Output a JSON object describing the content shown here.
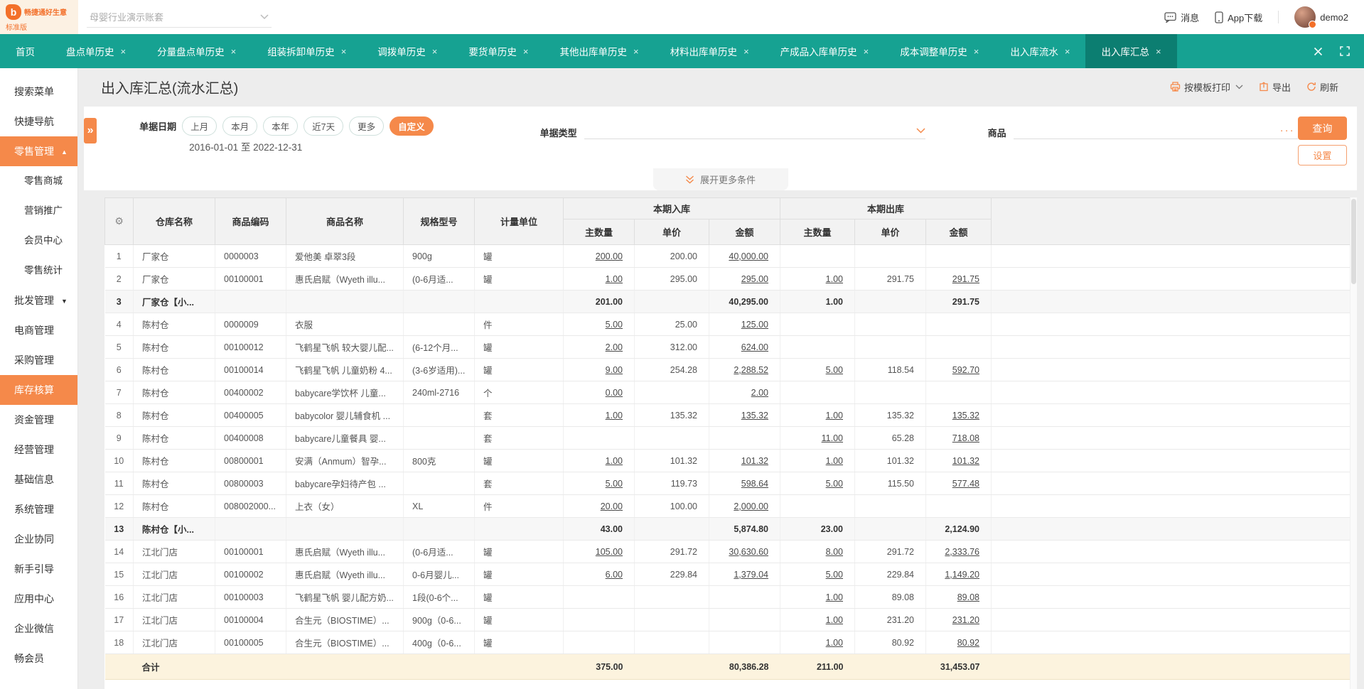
{
  "colors": {
    "accent_orange": "#f5894a",
    "teal": "#16a292",
    "teal_active": "#0c7e71",
    "total_row_bg": "#fcf3de",
    "logo_orange": "#f3702a"
  },
  "icons": {
    "gear": "⚙",
    "expand": "»",
    "close": "×",
    "arrow_up": "▲",
    "arrow_down": "▼",
    "ellipsis": "···"
  },
  "topbar": {
    "logo_title": "畅捷通好生意",
    "logo_edition": "标准版",
    "logo_glyph": "b",
    "account_selector": "母婴行业演示账套",
    "messages_label": "消息",
    "app_download_label": "App下载",
    "username": "demo2"
  },
  "tabbar": {
    "tabs": [
      {
        "label": "首页",
        "closable": false,
        "active": false
      },
      {
        "label": "盘点单历史",
        "closable": true,
        "active": false
      },
      {
        "label": "分量盘点单历史",
        "closable": true,
        "active": false
      },
      {
        "label": "组装拆卸单历史",
        "closable": true,
        "active": false
      },
      {
        "label": "调拨单历史",
        "closable": true,
        "active": false
      },
      {
        "label": "要货单历史",
        "closable": true,
        "active": false
      },
      {
        "label": "其他出库单历史",
        "closable": true,
        "active": false
      },
      {
        "label": "材料出库单历史",
        "closable": true,
        "active": false
      },
      {
        "label": "产成品入库单历史",
        "closable": true,
        "active": false
      },
      {
        "label": "成本调整单历史",
        "closable": true,
        "active": false
      },
      {
        "label": "出入库流水",
        "closable": true,
        "active": false
      },
      {
        "label": "出入库汇总",
        "closable": true,
        "active": true
      }
    ]
  },
  "sidebar": {
    "items": [
      {
        "label": "搜索菜单",
        "style": "normal"
      },
      {
        "label": "快捷导航",
        "style": "normal"
      },
      {
        "label": "零售管理",
        "style": "parent-active",
        "arrow": "up"
      },
      {
        "label": "零售商城",
        "style": "sub"
      },
      {
        "label": "营销推广",
        "style": "sub"
      },
      {
        "label": "会员中心",
        "style": "sub"
      },
      {
        "label": "零售统计",
        "style": "sub"
      },
      {
        "label": "批发管理",
        "style": "normal",
        "arrow": "down"
      },
      {
        "label": "电商管理",
        "style": "normal"
      },
      {
        "label": "采购管理",
        "style": "normal"
      },
      {
        "label": "库存核算",
        "style": "active"
      },
      {
        "label": "资金管理",
        "style": "normal"
      },
      {
        "label": "经营管理",
        "style": "normal"
      },
      {
        "label": "基础信息",
        "style": "normal"
      },
      {
        "label": "系统管理",
        "style": "normal"
      },
      {
        "label": "企业协同",
        "style": "normal"
      },
      {
        "label": "新手引导",
        "style": "normal"
      },
      {
        "label": "应用中心",
        "style": "normal"
      },
      {
        "label": "企业微信",
        "style": "normal"
      },
      {
        "label": "畅会员",
        "style": "normal"
      }
    ]
  },
  "page": {
    "title": "出入库汇总(流水汇总)",
    "actions": {
      "print": "按模板打印",
      "export": "导出",
      "refresh": "刷新"
    }
  },
  "filters": {
    "date_label": "单据日期",
    "date_pills": [
      "上月",
      "本月",
      "本年",
      "近7天",
      "更多"
    ],
    "date_custom_pill": "自定义",
    "date_range": "2016-01-01 至 2022-12-31",
    "doc_type_label": "单据类型",
    "product_label": "商品",
    "search_button": "查询",
    "settings_button": "设置",
    "expand_more": "展开更多条件"
  },
  "table": {
    "columns": {
      "warehouse": "仓库名称",
      "code": "商品编码",
      "name": "商品名称",
      "spec": "规格型号",
      "unit": "计量单位"
    },
    "group_in": "本期入库",
    "group_out": "本期出库",
    "sub_columns": [
      "主数量",
      "单价",
      "金额"
    ],
    "rows": [
      {
        "n": "1",
        "warehouse": "厂家仓",
        "code": "0000003",
        "name": "爱他美 卓翠3段",
        "spec": "900g",
        "unit": "罐",
        "in_qty": "200.00",
        "in_price": "200.00",
        "in_amt": "40,000.00",
        "out_qty": "",
        "out_price": "",
        "out_amt": "",
        "subtotal": false
      },
      {
        "n": "2",
        "warehouse": "厂家仓",
        "code": "00100001",
        "name": "惠氏启赋（Wyeth illu...",
        "spec": "(0-6月适...",
        "unit": "罐",
        "in_qty": "1.00",
        "in_price": "295.00",
        "in_amt": "295.00",
        "out_qty": "1.00",
        "out_price": "291.75",
        "out_amt": "291.75",
        "subtotal": false
      },
      {
        "n": "3",
        "warehouse": "厂家仓【小...",
        "code": "",
        "name": "",
        "spec": "",
        "unit": "",
        "in_qty": "201.00",
        "in_price": "",
        "in_amt": "40,295.00",
        "out_qty": "1.00",
        "out_price": "",
        "out_amt": "291.75",
        "subtotal": true
      },
      {
        "n": "4",
        "warehouse": "陈村仓",
        "code": "0000009",
        "name": "衣服",
        "spec": "",
        "unit": "件",
        "in_qty": "5.00",
        "in_price": "25.00",
        "in_amt": "125.00",
        "out_qty": "",
        "out_price": "",
        "out_amt": "",
        "subtotal": false
      },
      {
        "n": "5",
        "warehouse": "陈村仓",
        "code": "00100012",
        "name": "飞鹤星飞帆 较大婴儿配...",
        "spec": "(6-12个月...",
        "unit": "罐",
        "in_qty": "2.00",
        "in_price": "312.00",
        "in_amt": "624.00",
        "out_qty": "",
        "out_price": "",
        "out_amt": "",
        "subtotal": false
      },
      {
        "n": "6",
        "warehouse": "陈村仓",
        "code": "00100014",
        "name": "飞鹤星飞帆 儿童奶粉 4...",
        "spec": "(3-6岁适用)...",
        "unit": "罐",
        "in_qty": "9.00",
        "in_price": "254.28",
        "in_amt": "2,288.52",
        "out_qty": "5.00",
        "out_price": "118.54",
        "out_amt": "592.70",
        "subtotal": false
      },
      {
        "n": "7",
        "warehouse": "陈村仓",
        "code": "00400002",
        "name": "babycare学饮杯 儿童...",
        "spec": "240ml-2716",
        "unit": "个",
        "in_qty": "0.00",
        "in_price": "",
        "in_amt": "2.00",
        "out_qty": "",
        "out_price": "",
        "out_amt": "",
        "subtotal": false
      },
      {
        "n": "8",
        "warehouse": "陈村仓",
        "code": "00400005",
        "name": "babycolor 婴儿辅食机 ...",
        "spec": "",
        "unit": "套",
        "in_qty": "1.00",
        "in_price": "135.32",
        "in_amt": "135.32",
        "out_qty": "1.00",
        "out_price": "135.32",
        "out_amt": "135.32",
        "subtotal": false
      },
      {
        "n": "9",
        "warehouse": "陈村仓",
        "code": "00400008",
        "name": "babycare儿童餐具 婴...",
        "spec": "",
        "unit": "套",
        "in_qty": "",
        "in_price": "",
        "in_amt": "",
        "out_qty": "11.00",
        "out_price": "65.28",
        "out_amt": "718.08",
        "subtotal": false
      },
      {
        "n": "10",
        "warehouse": "陈村仓",
        "code": "00800001",
        "name": "安满（Anmum）智孕...",
        "spec": "800克",
        "unit": "罐",
        "in_qty": "1.00",
        "in_price": "101.32",
        "in_amt": "101.32",
        "out_qty": "1.00",
        "out_price": "101.32",
        "out_amt": "101.32",
        "subtotal": false
      },
      {
        "n": "11",
        "warehouse": "陈村仓",
        "code": "00800003",
        "name": "babycare孕妇待产包 ...",
        "spec": "",
        "unit": "套",
        "in_qty": "5.00",
        "in_price": "119.73",
        "in_amt": "598.64",
        "out_qty": "5.00",
        "out_price": "115.50",
        "out_amt": "577.48",
        "subtotal": false
      },
      {
        "n": "12",
        "warehouse": "陈村仓",
        "code": "008002000...",
        "name": "上衣（女）",
        "spec": "XL",
        "unit": "件",
        "in_qty": "20.00",
        "in_price": "100.00",
        "in_amt": "2,000.00",
        "out_qty": "",
        "out_price": "",
        "out_amt": "",
        "subtotal": false
      },
      {
        "n": "13",
        "warehouse": "陈村仓【小...",
        "code": "",
        "name": "",
        "spec": "",
        "unit": "",
        "in_qty": "43.00",
        "in_price": "",
        "in_amt": "5,874.80",
        "out_qty": "23.00",
        "out_price": "",
        "out_amt": "2,124.90",
        "subtotal": true
      },
      {
        "n": "14",
        "warehouse": "江北门店",
        "code": "00100001",
        "name": "惠氏启赋（Wyeth illu...",
        "spec": "(0-6月适...",
        "unit": "罐",
        "in_qty": "105.00",
        "in_price": "291.72",
        "in_amt": "30,630.60",
        "out_qty": "8.00",
        "out_price": "291.72",
        "out_amt": "2,333.76",
        "subtotal": false
      },
      {
        "n": "15",
        "warehouse": "江北门店",
        "code": "00100002",
        "name": "惠氏启赋（Wyeth illu...",
        "spec": "0-6月婴儿...",
        "unit": "罐",
        "in_qty": "6.00",
        "in_price": "229.84",
        "in_amt": "1,379.04",
        "out_qty": "5.00",
        "out_price": "229.84",
        "out_amt": "1,149.20",
        "subtotal": false
      },
      {
        "n": "16",
        "warehouse": "江北门店",
        "code": "00100003",
        "name": "飞鹤星飞帆 婴儿配方奶...",
        "spec": "1段(0-6个...",
        "unit": "罐",
        "in_qty": "",
        "in_price": "",
        "in_amt": "",
        "out_qty": "1.00",
        "out_price": "89.08",
        "out_amt": "89.08",
        "subtotal": false
      },
      {
        "n": "17",
        "warehouse": "江北门店",
        "code": "00100004",
        "name": "合生元（BIOSTIME）...",
        "spec": "900g（0-6...",
        "unit": "罐",
        "in_qty": "",
        "in_price": "",
        "in_amt": "",
        "out_qty": "1.00",
        "out_price": "231.20",
        "out_amt": "231.20",
        "subtotal": false
      },
      {
        "n": "18",
        "warehouse": "江北门店",
        "code": "00100005",
        "name": "合生元（BIOSTIME）...",
        "spec": "400g（0-6...",
        "unit": "罐",
        "in_qty": "",
        "in_price": "",
        "in_amt": "",
        "out_qty": "1.00",
        "out_price": "80.92",
        "out_amt": "80.92",
        "subtotal": false
      }
    ],
    "total": {
      "label": "合计",
      "in_qty": "375.00",
      "in_amt": "80,386.28",
      "out_qty": "211.00",
      "out_amt": "31,453.07"
    }
  }
}
